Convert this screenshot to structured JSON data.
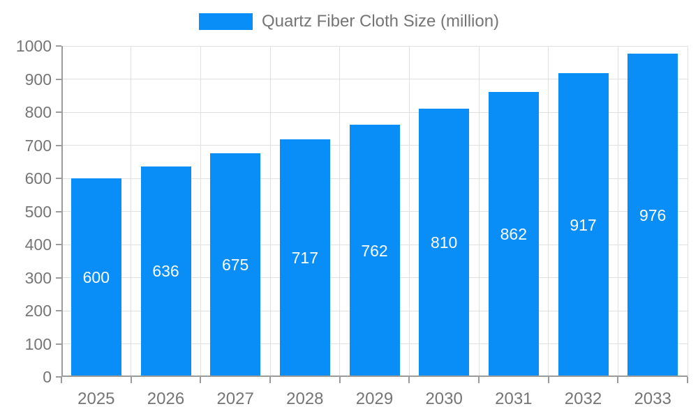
{
  "chart_data": {
    "type": "bar",
    "title": "",
    "legend_label": "Quartz Fiber Cloth Size (million)",
    "legend_position": "top-center",
    "categories": [
      "2025",
      "2026",
      "2027",
      "2028",
      "2029",
      "2030",
      "2031",
      "2032",
      "2033"
    ],
    "values": [
      600,
      636,
      675,
      717,
      762,
      810,
      862,
      917,
      976
    ],
    "xlabel": "",
    "ylabel": "",
    "ylim": [
      0,
      1000
    ],
    "yticks": [
      0,
      100,
      200,
      300,
      400,
      500,
      600,
      700,
      800,
      900,
      1000
    ],
    "grid": true,
    "bar_value_labels_shown": true
  },
  "colors": {
    "bar": "#098df6",
    "grid_line": "#e0e0e0",
    "axis_line": "#9b9b9b",
    "axis_text": "#757575",
    "bar_label_text": "#ffffff",
    "background": "#ffffff"
  }
}
